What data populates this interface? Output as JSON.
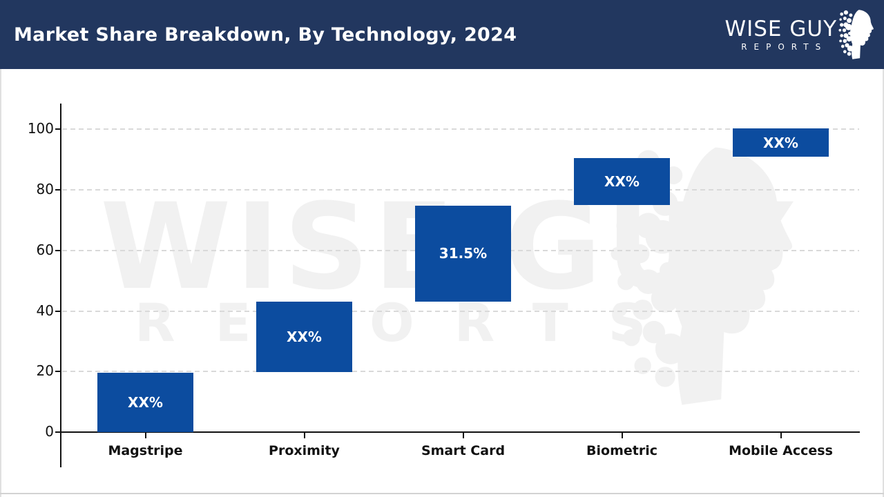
{
  "header": {
    "title": "Market Share Breakdown, By Technology, 2024",
    "logo": {
      "name": "WISE GUY",
      "sub": "REPORTS"
    }
  },
  "watermark": {
    "line1": "WISE GUY",
    "line2": "REPORTS"
  },
  "chart_data": {
    "type": "bar",
    "variant": "waterfall-floating-bars",
    "title": "Market Share Breakdown, By Technology, 2024",
    "categories": [
      "Magstripe",
      "Proximity",
      "Smart Card",
      "Biometric",
      "Mobile Access"
    ],
    "bars": [
      {
        "category": "Magstripe",
        "start": 0,
        "end": 19.5,
        "label": "XX%"
      },
      {
        "category": "Proximity",
        "start": 19.8,
        "end": 43.2,
        "label": "XX%"
      },
      {
        "category": "Smart Card",
        "start": 43.2,
        "end": 74.7,
        "label": "31.5%",
        "value": 31.5
      },
      {
        "category": "Biometric",
        "start": 74.9,
        "end": 90.6,
        "label": "XX%"
      },
      {
        "category": "Mobile Access",
        "start": 90.9,
        "end": 100.3,
        "label": "XX%"
      }
    ],
    "y_ticks": [
      0,
      20,
      40,
      60,
      80,
      100
    ],
    "ylim": [
      0,
      108
    ],
    "xlabel": "",
    "ylabel": "",
    "grid": {
      "horizontal": true,
      "style": "dashed"
    },
    "legend": "none",
    "bar_color": "#0C4C9F",
    "bar_label_color": "#FFFFFF"
  },
  "colors": {
    "header_bg": "#22375F",
    "bar": "#0C4C9F",
    "gridline": "#D9D9D9",
    "axis": "#111111",
    "watermark": "#F1F1F1",
    "background": "#FFFFFF"
  }
}
